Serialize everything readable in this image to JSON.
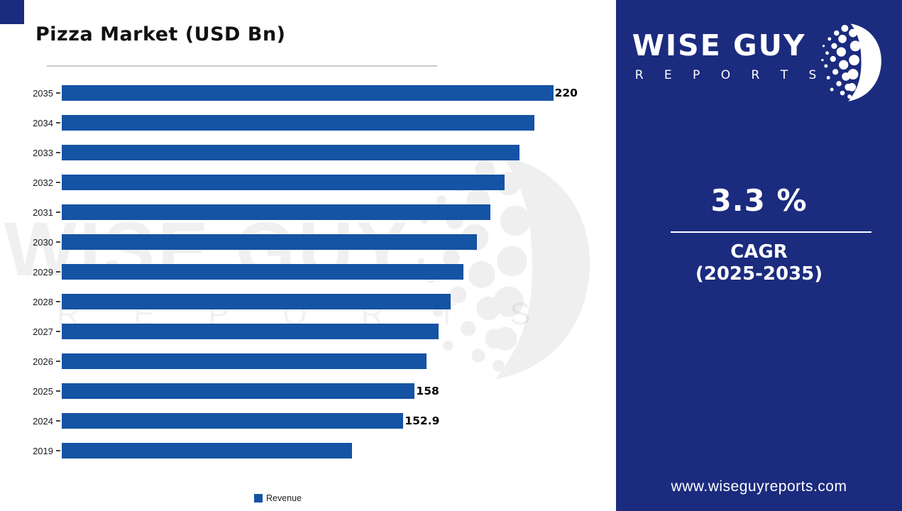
{
  "title": "Pizza Market (USD Bn)",
  "chart_data": {
    "type": "bar",
    "orientation": "horizontal",
    "title": "Pizza Market (USD Bn)",
    "categories": [
      "2035",
      "2034",
      "2033",
      "2032",
      "2031",
      "2030",
      "2029",
      "2028",
      "2027",
      "2026",
      "2025",
      "2024",
      "2019"
    ],
    "values": [
      220,
      211.7,
      204.9,
      198.3,
      192.0,
      185.9,
      179.9,
      174.2,
      168.6,
      163.2,
      158,
      152.9,
      130
    ],
    "value_labels": {
      "2035": "220",
      "2025": "158",
      "2024": "152.9"
    },
    "xlim": [
      0,
      243
    ],
    "grid": false,
    "legend_position": "bottom",
    "legend": [
      {
        "label": "Revenue",
        "color": "#1553a4"
      }
    ],
    "bar_color": "#1553a4",
    "xlabel": "",
    "ylabel": ""
  },
  "watermark": {
    "wordmark": "WISE GUY",
    "reports": "R E P O R T S"
  },
  "sidebar": {
    "bg_color": "#1b2b7e",
    "logo_wordmark": "WISE GUY",
    "logo_reports": "R E P O R T S",
    "cagr_value": "3.3 %",
    "cagr_label": "CAGR",
    "cagr_range": "(2025-2035)",
    "website": "www.wiseguyreports.com"
  }
}
